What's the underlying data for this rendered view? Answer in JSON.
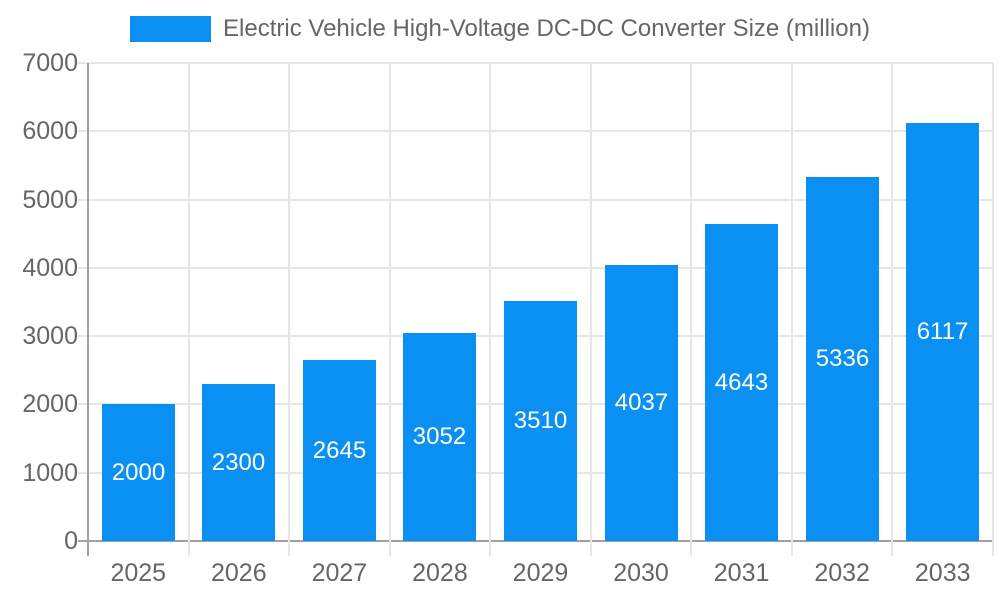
{
  "legend": {
    "label": "Electric Vehicle High-Voltage DC-DC Converter Size (million)"
  },
  "chart_data": {
    "type": "bar",
    "title": "Electric Vehicle High-Voltage DC-DC Converter Size (million)",
    "categories": [
      "2025",
      "2026",
      "2027",
      "2028",
      "2029",
      "2030",
      "2031",
      "2032",
      "2033"
    ],
    "series": [
      {
        "name": "Electric Vehicle High-Voltage DC-DC Converter Size (million)",
        "values": [
          2000,
          2300,
          2645,
          3052,
          3510,
          4037,
          4643,
          5336,
          6117
        ]
      }
    ],
    "values": [
      2000,
      2300,
      2645,
      3052,
      3510,
      4037,
      4643,
      5336,
      6117
    ],
    "value_labels": [
      "2000",
      "2300",
      "2645",
      "3052",
      "3510",
      "4037",
      "4643",
      "5336",
      "6117"
    ],
    "value_label_position": "inside-center",
    "xlabel": "",
    "ylabel": "",
    "ylim": [
      0,
      7000
    ],
    "ytick_step": 1000,
    "ytick_labels": [
      "0",
      "1000",
      "2000",
      "3000",
      "4000",
      "5000",
      "6000",
      "7000"
    ],
    "grid": true,
    "legend_position": "top"
  },
  "colors": {
    "bar": "#0a90f2",
    "grid_line": "#e6e6e6",
    "axis_line": "#a0a0a0",
    "tick_text": "#666666",
    "bar_label_text": "#ffffff",
    "background": "#ffffff"
  }
}
